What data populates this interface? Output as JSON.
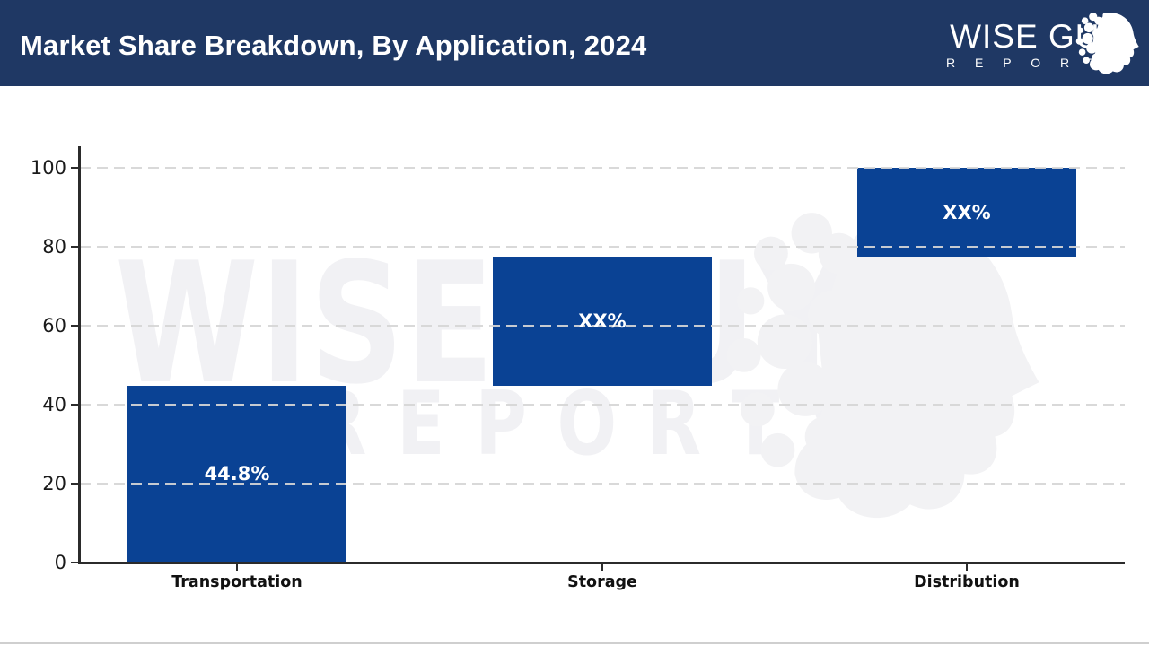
{
  "header": {
    "title": "Market Share Breakdown, By Application, 2024",
    "logo": {
      "line1": "WISE GUY",
      "line2": "R E P O R T S"
    }
  },
  "watermark": {
    "line1": "WISE GUY",
    "line2": "R E P O R T S"
  },
  "chart_data": {
    "type": "bar",
    "subtype": "waterfall",
    "title": "Market Share Breakdown, By Application, 2024",
    "categories": [
      "Transportation",
      "Storage",
      "Distribution"
    ],
    "segments": [
      {
        "start": 0,
        "end": 44.8
      },
      {
        "start": 44.8,
        "end": 77.4
      },
      {
        "start": 77.4,
        "end": 100
      }
    ],
    "bar_labels": [
      "44.8%",
      "XX%",
      "XX%"
    ],
    "yticks": [
      0,
      20,
      40,
      60,
      80,
      100
    ],
    "ylim": [
      0,
      100
    ],
    "xlabel": "",
    "ylabel": "",
    "grid": "horizontal-dashed",
    "legend": "none",
    "bar_color": "#0a4294"
  },
  "colors": {
    "header_bg": "#1f3864",
    "bar": "#0a4294",
    "axis": "#2b2b2b",
    "grid": "#d6d6d6",
    "watermark": "#f1f1f4",
    "bar_label_text": "#ffffff",
    "tick_text": "#1a1a1a"
  }
}
